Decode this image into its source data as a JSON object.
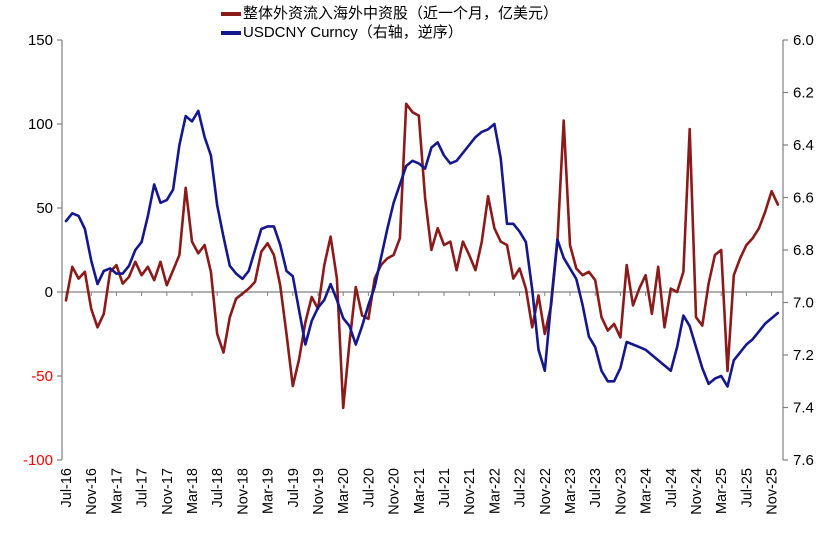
{
  "legend": [
    {
      "label": "整体外资流入海外中资股（近一个月，亿美元）",
      "color": "#8B1A1A"
    },
    {
      "label": "USDCNY Curncy（右轴，逆序）",
      "color": "#14188C"
    }
  ],
  "chart_data": {
    "type": "line",
    "title": "",
    "xlabel": "",
    "categories": [
      "Jul-16",
      "Aug-16",
      "Sep-16",
      "Oct-16",
      "Nov-16",
      "Dec-16",
      "Jan-17",
      "Feb-17",
      "Mar-17",
      "Apr-17",
      "May-17",
      "Jun-17",
      "Jul-17",
      "Aug-17",
      "Sep-17",
      "Oct-17",
      "Nov-17",
      "Dec-17",
      "Jan-18",
      "Feb-18",
      "Mar-18",
      "Apr-18",
      "May-18",
      "Jun-18",
      "Jul-18",
      "Aug-18",
      "Sep-18",
      "Oct-18",
      "Nov-18",
      "Dec-18",
      "Jan-19",
      "Feb-19",
      "Mar-19",
      "Apr-19",
      "May-19",
      "Jun-19",
      "Jul-19",
      "Aug-19",
      "Sep-19",
      "Oct-19",
      "Nov-19",
      "Dec-19",
      "Jan-20",
      "Feb-20",
      "Mar-20",
      "Apr-20",
      "May-20",
      "Jun-20",
      "Jul-20",
      "Aug-20",
      "Sep-20",
      "Oct-20",
      "Nov-20",
      "Dec-20",
      "Jan-21",
      "Feb-21",
      "Mar-21",
      "Apr-21",
      "May-21",
      "Jun-21",
      "Jul-21",
      "Aug-21",
      "Sep-21",
      "Oct-21",
      "Nov-21",
      "Dec-21",
      "Jan-22",
      "Feb-22",
      "Mar-22",
      "Apr-22",
      "May-22",
      "Jun-22",
      "Jul-22",
      "Aug-22",
      "Sep-22",
      "Oct-22",
      "Nov-22",
      "Dec-22",
      "Jan-23",
      "Feb-23",
      "Mar-23",
      "Apr-23",
      "May-23",
      "Jun-23",
      "Jul-23",
      "Aug-23",
      "Sep-23",
      "Oct-23",
      "Nov-23",
      "Dec-23",
      "Jan-24",
      "Feb-24",
      "Mar-24",
      "Apr-24",
      "May-24",
      "Jun-24",
      "Jul-24",
      "Aug-24",
      "Sep-24",
      "Oct-24",
      "Nov-24",
      "Dec-24",
      "Jan-25",
      "Feb-25",
      "Mar-25",
      "Apr-25",
      "May-25",
      "Jun-25",
      "Jul-25",
      "Aug-25",
      "Sep-25",
      "Oct-25",
      "Nov-25",
      "Dec-25"
    ],
    "x_tick_labels": [
      "Jul-16",
      "Nov-16",
      "Mar-17",
      "Jul-17",
      "Nov-17",
      "Mar-18",
      "Jul-18",
      "Nov-18",
      "Mar-19",
      "Jul-19",
      "Nov-19",
      "Mar-20",
      "Jul-20",
      "Nov-20",
      "Mar-21",
      "Jul-21",
      "Nov-21",
      "Mar-22",
      "Jul-22",
      "Nov-22",
      "Mar-23",
      "Jul-23",
      "Nov-23",
      "Mar-24",
      "Jul-24",
      "Nov-24",
      "Mar-25",
      "Jul-25",
      "Nov-25"
    ],
    "x_tick_every": 4,
    "left_axis": {
      "min": -100,
      "max": 150,
      "ticks": [
        150,
        100,
        50,
        0,
        -50,
        -100
      ],
      "label_color": "#000000",
      "negative_label_color": "#FF0000"
    },
    "right_axis": {
      "min": 6.0,
      "max": 7.6,
      "ticks": [
        6.0,
        6.2,
        6.4,
        6.6,
        6.8,
        7.0,
        7.2,
        7.4,
        7.6
      ],
      "reversed": true,
      "label_color": "#000000"
    },
    "grid": false,
    "legend_position": "top",
    "series": [
      {
        "name": "整体外资流入海外中资股（近一个月，亿美元）",
        "axis": "left",
        "color": "#8B1A1A",
        "values": [
          -5,
          15,
          8,
          12,
          -10,
          -21,
          -13,
          12,
          16,
          5,
          9,
          18,
          10,
          15,
          7,
          18,
          4,
          13,
          22,
          62,
          30,
          23,
          28,
          12,
          -25,
          -36,
          -15,
          -4,
          -1,
          2,
          6,
          24,
          29,
          22,
          4,
          -25,
          -56,
          -40,
          -18,
          -3,
          -10,
          16,
          33,
          8,
          -69,
          -30,
          3,
          -14,
          -16,
          8,
          16,
          20,
          22,
          32,
          112,
          107,
          105,
          56,
          25,
          38,
          28,
          30,
          13,
          30,
          22,
          13,
          30,
          57,
          38,
          30,
          28,
          8,
          14,
          2,
          -21,
          -2,
          -25,
          -8,
          30,
          102,
          28,
          14,
          10,
          12,
          7,
          -15,
          -23,
          -19,
          -27,
          16,
          -8,
          2,
          10,
          -13,
          15,
          -21,
          2,
          0,
          12,
          97,
          -15,
          -20,
          5,
          22,
          25,
          -47,
          10,
          20,
          28,
          32,
          38,
          48,
          60,
          52
        ]
      },
      {
        "name": "USDCNY Curncy（右轴，逆序）",
        "axis": "right",
        "color": "#14188C",
        "values": [
          6.69,
          6.66,
          6.67,
          6.72,
          6.84,
          6.93,
          6.88,
          6.87,
          6.89,
          6.89,
          6.86,
          6.8,
          6.77,
          6.67,
          6.55,
          6.62,
          6.61,
          6.57,
          6.4,
          6.29,
          6.31,
          6.27,
          6.37,
          6.44,
          6.63,
          6.75,
          6.86,
          6.89,
          6.91,
          6.88,
          6.8,
          6.72,
          6.71,
          6.71,
          6.78,
          6.88,
          6.9,
          7.03,
          7.16,
          7.07,
          7.02,
          6.99,
          6.93,
          6.99,
          7.06,
          7.09,
          7.16,
          7.09,
          7.01,
          6.94,
          6.83,
          6.72,
          6.62,
          6.55,
          6.48,
          6.46,
          6.47,
          6.49,
          6.41,
          6.39,
          6.44,
          6.47,
          6.46,
          6.43,
          6.4,
          6.37,
          6.35,
          6.34,
          6.32,
          6.45,
          6.7,
          6.7,
          6.73,
          6.77,
          6.95,
          7.18,
          7.26,
          7.0,
          6.76,
          6.83,
          6.87,
          6.91,
          7.01,
          7.13,
          7.17,
          7.26,
          7.3,
          7.3,
          7.25,
          7.15,
          7.16,
          7.17,
          7.18,
          7.2,
          7.22,
          7.24,
          7.26,
          7.17,
          7.05,
          7.09,
          7.17,
          7.25,
          7.31,
          7.29,
          7.28,
          7.32,
          7.22,
          7.19,
          7.16,
          7.14,
          7.11,
          7.08,
          7.06,
          7.04
        ]
      }
    ],
    "colors": {
      "axis_line": "#808080",
      "zero_line": "#808080",
      "background": "#FFFFFF"
    }
  }
}
